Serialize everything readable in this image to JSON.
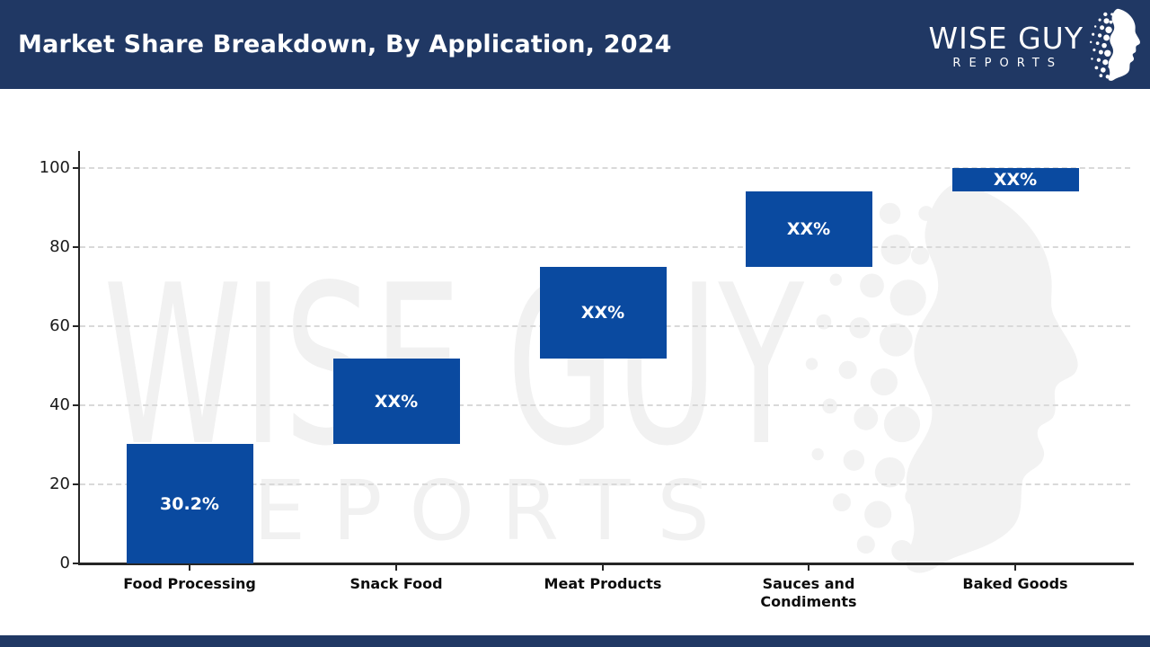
{
  "header": {
    "title": "Market Share Breakdown, By Application, 2024",
    "bg_color": "#203864",
    "logo": {
      "name": "WISE GUY",
      "sub": "REPORTS",
      "face_icon": "dotted-head-profile-icon"
    }
  },
  "watermark": {
    "line1": "WISE GUY",
    "line2": "REPORTS",
    "color": "#f1f1f1"
  },
  "chart_data": {
    "type": "bar",
    "subtype": "waterfall",
    "title": "Market Share Breakdown, By Application, 2024",
    "categories": [
      "Food Processing",
      "Snack Food",
      "Meat Products",
      "Sauces and Condiments",
      "Baked Goods"
    ],
    "segments": [
      {
        "category": "Food Processing",
        "start": 0,
        "end": 30.2,
        "label": "30.2%"
      },
      {
        "category": "Snack Food",
        "start": 30.2,
        "end": 51.8,
        "label": "XX%"
      },
      {
        "category": "Meat Products",
        "start": 51.8,
        "end": 75,
        "label": "XX%"
      },
      {
        "category": "Sauces and Condiments",
        "start": 75,
        "end": 94,
        "label": "XX%"
      },
      {
        "category": "Baked Goods",
        "start": 94,
        "end": 100,
        "label": "XX%"
      }
    ],
    "xlabel": "",
    "ylabel": "",
    "y_ticks": [
      0,
      20,
      40,
      60,
      80,
      100
    ],
    "ylim": [
      0,
      105
    ],
    "grid": "horizontal-dashed",
    "legend": "none",
    "bar_color": "#0A4AA0",
    "bar_label_color": "#ffffff",
    "grid_color": "#d9d9d9",
    "axis_color": "#262626"
  },
  "footer": {
    "bg_color": "#203864"
  }
}
